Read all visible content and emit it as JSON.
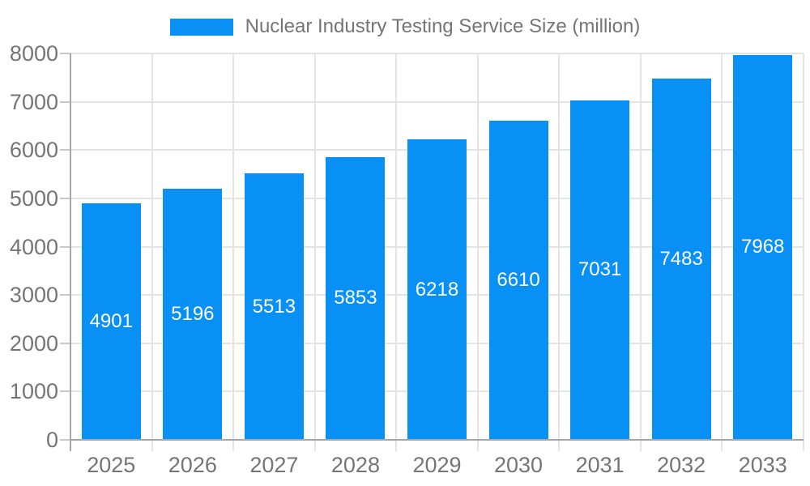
{
  "chart_data": {
    "type": "bar",
    "title": "Nuclear Industry Testing Service Size (million)",
    "categories": [
      "2025",
      "2026",
      "2027",
      "2028",
      "2029",
      "2030",
      "2031",
      "2032",
      "2033"
    ],
    "values": [
      4901,
      5196,
      5513,
      5853,
      6218,
      6610,
      7031,
      7483,
      7968
    ],
    "xlabel": "",
    "ylabel": "",
    "ylim": [
      0,
      8000
    ],
    "yticks": [
      0,
      1000,
      2000,
      3000,
      4000,
      5000,
      6000,
      7000,
      8000
    ],
    "grid": true,
    "legend_position": "top-center",
    "value_label_position": "inside-center",
    "colors": {
      "bar": "#0890f5",
      "value_label": "#ffffff",
      "axis_text": "#757575",
      "axis_line": "#a6a6a6",
      "gridline": "#e4e4e4",
      "tick": "#c9c9c9",
      "background": "#ffffff"
    }
  }
}
